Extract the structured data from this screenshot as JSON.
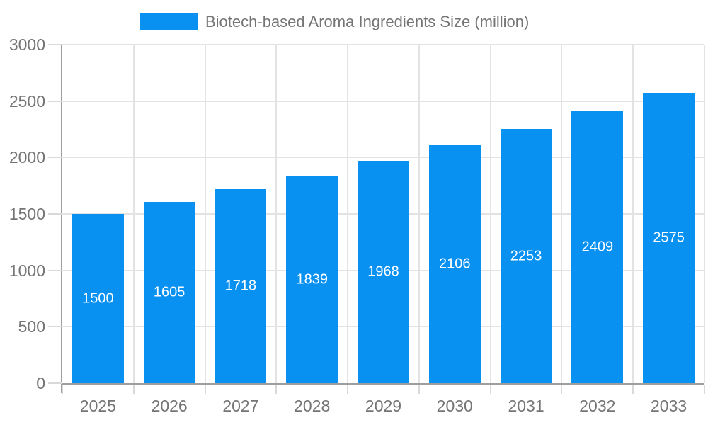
{
  "chart_data": {
    "type": "bar",
    "title": "Biotech-based Aroma Ingredients Size (million)",
    "legend": [
      "Biotech-based Aroma Ingredients Size (million)"
    ],
    "legend_position": "top",
    "categories": [
      "2025",
      "2026",
      "2027",
      "2028",
      "2029",
      "2030",
      "2031",
      "2032",
      "2033"
    ],
    "values": [
      1500,
      1605,
      1718,
      1839,
      1968,
      2106,
      2253,
      2409,
      2575
    ],
    "xlabel": "",
    "ylabel": "",
    "ylim": [
      0,
      3000
    ],
    "yticks": [
      0,
      500,
      1000,
      1500,
      2000,
      2500,
      3000
    ],
    "grid": true,
    "value_labels": "inside-center"
  },
  "colors": {
    "bar": "#0991f2",
    "grid": "#e3e3e3",
    "tick": "#d9d9d9",
    "axis": "#9e9e9e",
    "label_text": "#757575",
    "value_text": "#ffffff",
    "background": "#ffffff"
  }
}
